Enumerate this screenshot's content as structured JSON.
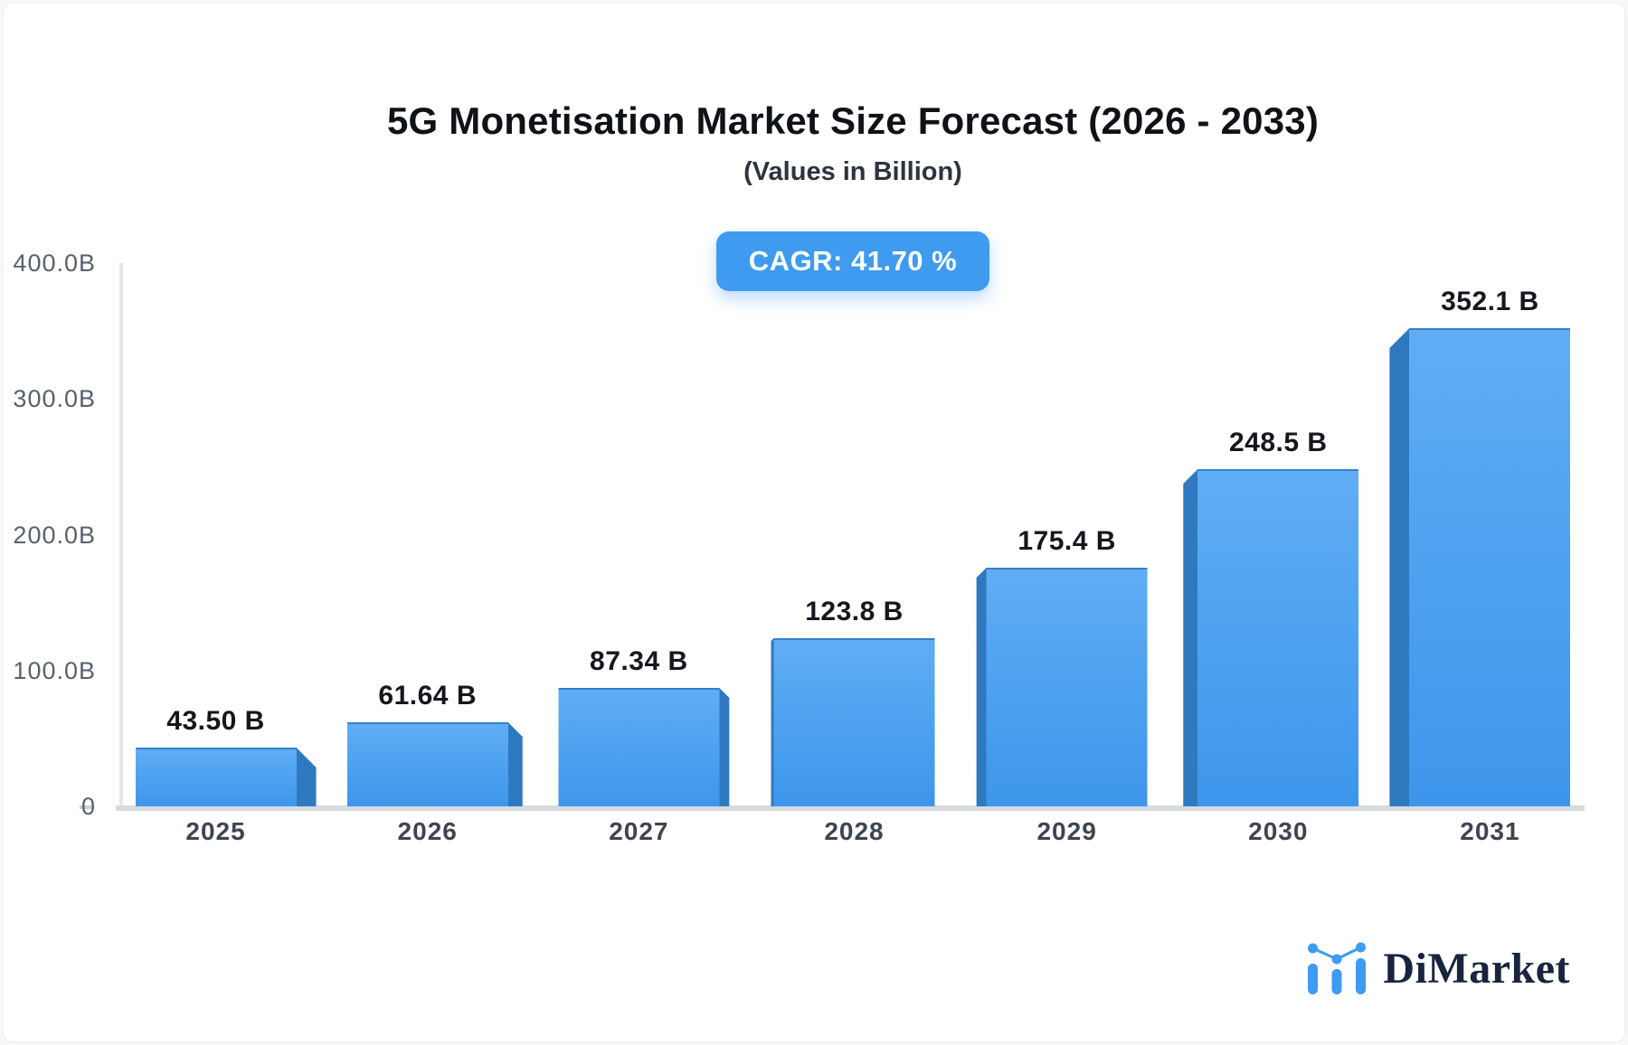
{
  "page": {
    "title": "5G Monetisation Market Size Forecast (2026 - 2033)",
    "subtitle": "(Values in Billion)",
    "cagr_badge": "CAGR: 41.70 %",
    "brand": {
      "name": "DiMarket",
      "icon": "mini-bar-line-chart-icon"
    }
  },
  "chart_data": {
    "type": "bar",
    "title": "5G Monetisation Market Size Forecast (2026 - 2033)",
    "subtitle": "(Values in Billion)",
    "cagr": "41.70%",
    "categories": [
      "2025",
      "2026",
      "2027",
      "2028",
      "2029",
      "2030",
      "2031"
    ],
    "values": [
      43.5,
      61.64,
      87.34,
      123.8,
      175.4,
      248.5,
      352.1
    ],
    "bar_labels": [
      "43.50 B",
      "61.64 B",
      "87.34 B",
      "123.8 B",
      "175.4 B",
      "248.5 B",
      "352.1 B"
    ],
    "y_ticks": [
      {
        "label": "400.0B",
        "value": 400
      },
      {
        "label": "300.0B",
        "value": 300
      },
      {
        "label": "200.0B",
        "value": 200
      },
      {
        "label": "100.0B",
        "value": 100
      },
      {
        "label": "0",
        "value": 0
      }
    ],
    "ylim": [
      0,
      400
    ],
    "xlabel": "",
    "ylabel": "",
    "grid": false,
    "legend": false,
    "colors": {
      "bar_face_top": "#60ADF4",
      "bar_face_bottom": "#3E96EC",
      "bar_side": "#2E79C0",
      "accent_badge": "#3E9BF0",
      "axis_line": "#e3e6ea",
      "baseline": "#d7dbdf",
      "logo_blue": "#3D9AF5",
      "logo_navy": "#1a2340"
    }
  }
}
